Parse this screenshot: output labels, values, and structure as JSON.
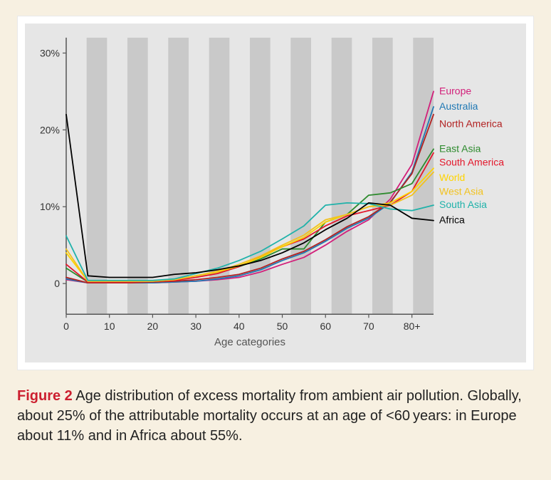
{
  "chart": {
    "type": "line",
    "background_color": "#e6e6e6",
    "stripe_color": "#c9c9c9",
    "axis_color": "#555555",
    "tick_color": "#333333",
    "label_fontsize": 15,
    "tick_fontsize": 14,
    "legend_fontsize": 14,
    "x_axis_label": "Age categories",
    "y_ticks": [
      0,
      10,
      20,
      30
    ],
    "y_tick_labels": [
      "0",
      "10%",
      "20%",
      "30%"
    ],
    "ylim": [
      -4,
      32
    ],
    "x_categories": [
      0,
      5,
      10,
      15,
      20,
      25,
      30,
      35,
      40,
      45,
      50,
      55,
      60,
      65,
      70,
      75,
      80,
      85
    ],
    "x_tick_positions": [
      0,
      10,
      20,
      30,
      40,
      50,
      60,
      70,
      80
    ],
    "x_tick_labels": [
      "0",
      "10",
      "20",
      "30",
      "40",
      "50",
      "60",
      "70",
      "80+"
    ],
    "line_width": 1.8,
    "series": [
      {
        "name": "Europe",
        "color": "#d21f7a",
        "values": [
          0.5,
          0.1,
          0.1,
          0.1,
          0.1,
          0.2,
          0.3,
          0.5,
          0.8,
          1.5,
          2.5,
          3.4,
          5.0,
          6.8,
          8.3,
          11.0,
          15.5,
          25.0
        ]
      },
      {
        "name": "Australia",
        "color": "#1f78b4",
        "values": [
          0.6,
          0.1,
          0.1,
          0.1,
          0.1,
          0.2,
          0.3,
          0.6,
          1.0,
          1.8,
          3.0,
          4.0,
          5.5,
          7.2,
          8.5,
          10.5,
          14.5,
          23.0
        ]
      },
      {
        "name": "North America",
        "color": "#b22222",
        "values": [
          0.8,
          0.1,
          0.1,
          0.1,
          0.2,
          0.3,
          0.5,
          0.8,
          1.2,
          2.0,
          3.2,
          4.2,
          5.7,
          7.4,
          8.7,
          10.6,
          14.3,
          22.0
        ]
      },
      {
        "name": "East Asia",
        "color": "#2e8b2e",
        "values": [
          2.0,
          0.2,
          0.2,
          0.2,
          0.3,
          0.5,
          1.0,
          1.5,
          2.2,
          3.2,
          4.5,
          4.5,
          8.0,
          9.0,
          11.5,
          11.8,
          13.0,
          17.5
        ]
      },
      {
        "name": "South America",
        "color": "#e3172b",
        "values": [
          2.5,
          0.2,
          0.2,
          0.2,
          0.3,
          0.4,
          0.8,
          1.3,
          2.2,
          3.5,
          4.8,
          5.8,
          7.5,
          8.8,
          9.5,
          10.2,
          12.0,
          17.0
        ]
      },
      {
        "name": "World",
        "color": "#ffd400",
        "values": [
          4.0,
          0.3,
          0.3,
          0.3,
          0.3,
          0.5,
          1.0,
          1.5,
          2.3,
          3.4,
          4.8,
          6.0,
          8.0,
          9.0,
          10.0,
          10.5,
          12.0,
          15.0
        ]
      },
      {
        "name": "West Asia",
        "color": "#f2c21f",
        "values": [
          4.5,
          0.3,
          0.3,
          0.3,
          0.3,
          0.5,
          1.0,
          1.6,
          2.5,
          3.6,
          5.0,
          6.3,
          8.3,
          9.0,
          10.0,
          10.2,
          11.5,
          14.5
        ]
      },
      {
        "name": "South Asia",
        "color": "#20b2aa",
        "values": [
          6.2,
          0.4,
          0.4,
          0.4,
          0.4,
          0.6,
          1.3,
          2.0,
          3.0,
          4.2,
          5.8,
          7.5,
          10.2,
          10.5,
          10.4,
          9.7,
          9.5,
          10.2
        ]
      },
      {
        "name": "Africa",
        "color": "#000000",
        "values": [
          22.0,
          1.0,
          0.8,
          0.8,
          0.8,
          1.2,
          1.4,
          1.8,
          2.3,
          3.0,
          4.0,
          5.3,
          7.0,
          8.5,
          10.5,
          10.2,
          8.5,
          8.2
        ]
      }
    ]
  },
  "caption": {
    "label": "Figure 2",
    "text": "Age distribution of excess mortality from ambient air pollution. Globally, about 25% of the attributable mortality occurs at an age of <60 years: in Europe about 11% and in Africa about 55%."
  }
}
